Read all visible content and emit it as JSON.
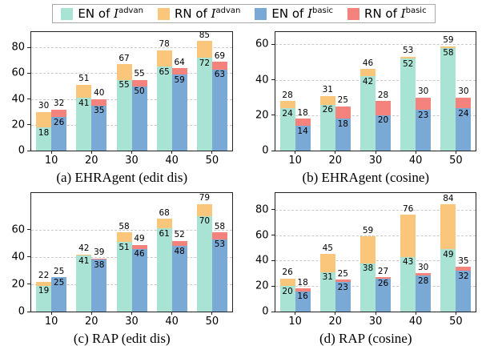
{
  "legend": {
    "items": [
      {
        "prefix": "EN of",
        "symbol": "I",
        "sup": "advan",
        "color": "#a9e3d4"
      },
      {
        "prefix": "RN of",
        "symbol": "I",
        "sup": "advan",
        "color": "#f9c67c"
      },
      {
        "prefix": "EN of",
        "symbol": "I",
        "sup": "basic",
        "color": "#7aa9d6"
      },
      {
        "prefix": "RN of",
        "symbol": "I",
        "sup": "basic",
        "color": "#f5837d"
      }
    ]
  },
  "chart_data": [
    {
      "type": "bar",
      "title": "(a) EHRAgent (edit dis)",
      "categories": [
        "10",
        "20",
        "30",
        "40",
        "50"
      ],
      "yticks": [
        0,
        20,
        40,
        60,
        80
      ],
      "ylim": [
        0,
        92
      ],
      "legend_position": "top",
      "grid": "dashed-horizontal",
      "series": [
        {
          "name": "EN of I^advan",
          "values": [
            18,
            41,
            55,
            65,
            72
          ]
        },
        {
          "name": "RN of I^advan",
          "values": [
            30,
            51,
            67,
            78,
            85
          ]
        },
        {
          "name": "EN of I^basic",
          "values": [
            26,
            35,
            50,
            59,
            63
          ]
        },
        {
          "name": "RN of I^basic",
          "values": [
            32,
            40,
            55,
            64,
            69
          ]
        }
      ]
    },
    {
      "type": "bar",
      "title": "(b) EHRAgent (cosine)",
      "categories": [
        "10",
        "20",
        "30",
        "40",
        "50"
      ],
      "yticks": [
        0,
        20,
        40,
        60
      ],
      "ylim": [
        0,
        67
      ],
      "legend_position": "top",
      "grid": "dashed-horizontal",
      "series": [
        {
          "name": "EN of I^advan",
          "values": [
            24,
            26,
            42,
            52,
            58
          ]
        },
        {
          "name": "RN of I^advan",
          "values": [
            28,
            31,
            46,
            53,
            59
          ]
        },
        {
          "name": "EN of I^basic",
          "values": [
            14,
            18,
            20,
            23,
            24
          ]
        },
        {
          "name": "RN of I^basic",
          "values": [
            18,
            25,
            28,
            30,
            30
          ]
        }
      ]
    },
    {
      "type": "bar",
      "title": "(c) RAP (edit dis)",
      "categories": [
        "10",
        "20",
        "30",
        "40",
        "50"
      ],
      "yticks": [
        0,
        20,
        40,
        60
      ],
      "ylim": [
        0,
        87
      ],
      "legend_position": "top",
      "grid": "dashed-horizontal",
      "series": [
        {
          "name": "EN of I^advan",
          "values": [
            19,
            41,
            51,
            61,
            70
          ]
        },
        {
          "name": "RN of I^advan",
          "values": [
            22,
            42,
            58,
            68,
            79
          ]
        },
        {
          "name": "EN of I^basic",
          "values": [
            25,
            38,
            46,
            48,
            53
          ]
        },
        {
          "name": "RN of I^basic",
          "values": [
            25,
            39,
            49,
            52,
            58
          ]
        }
      ]
    },
    {
      "type": "bar",
      "title": "(d) RAP (cosine)",
      "categories": [
        "10",
        "20",
        "30",
        "40",
        "50"
      ],
      "yticks": [
        0,
        20,
        40,
        60,
        80
      ],
      "ylim": [
        0,
        93
      ],
      "legend_position": "top",
      "grid": "dashed-horizontal",
      "series": [
        {
          "name": "EN of I^advan",
          "values": [
            20,
            31,
            38,
            43,
            49
          ]
        },
        {
          "name": "RN of I^advan",
          "values": [
            26,
            45,
            59,
            76,
            84
          ]
        },
        {
          "name": "EN of I^basic",
          "values": [
            16,
            23,
            26,
            28,
            32
          ]
        },
        {
          "name": "RN of I^basic",
          "values": [
            18,
            25,
            27,
            30,
            35
          ]
        }
      ]
    }
  ]
}
